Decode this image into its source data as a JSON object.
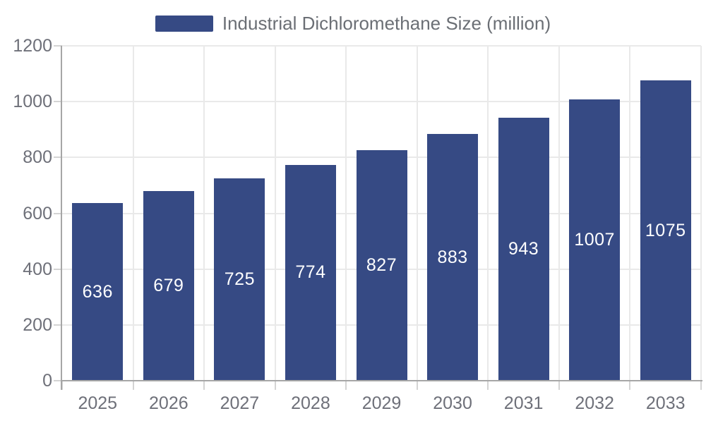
{
  "legend": {
    "label": "Industrial Dichloromethane Size (million)"
  },
  "chart_data": {
    "type": "bar",
    "title": "",
    "series_name": "Industrial Dichloromethane Size (million)",
    "categories": [
      "2025",
      "2026",
      "2027",
      "2028",
      "2029",
      "2030",
      "2031",
      "2032",
      "2033"
    ],
    "values": [
      636,
      679,
      725,
      774,
      827,
      883,
      943,
      1007,
      1075
    ],
    "value_labels_shown": true,
    "xlabel": "",
    "ylabel": "",
    "ylim": [
      0,
      1200
    ],
    "yticks": [
      0,
      200,
      400,
      600,
      800,
      1000,
      1200
    ],
    "grid": true,
    "legend_position": "top-center",
    "colors": {
      "bar": "#364A84",
      "value_label": "#FFFFFF",
      "axis_text": "#6E7079",
      "legend_text": "#6B6F75",
      "grid_line": "#E9E9E9",
      "axis_line": "#A6A6A6",
      "tick": "#D4D4D4",
      "background": "#FFFFFF"
    }
  }
}
